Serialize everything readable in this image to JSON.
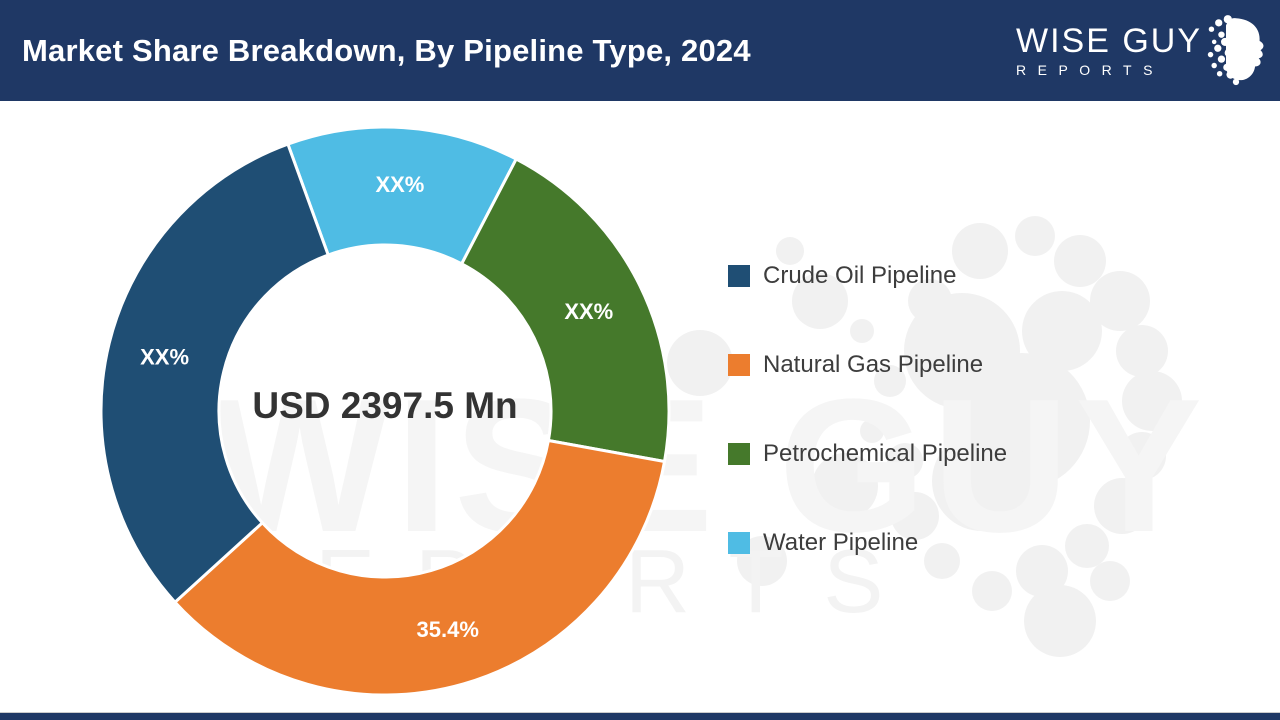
{
  "header": {
    "title": "Market Share Breakdown, By Pipeline Type, 2024",
    "logo": {
      "line1": "WISE GUY",
      "line2": "REPORTS"
    }
  },
  "watermark": {
    "line1": "WISE GUY",
    "line2": "REPORTS"
  },
  "chart_data": {
    "type": "pie",
    "subtype": "donut",
    "title": "Market Share Breakdown, By Pipeline Type, 2024",
    "center_label": "USD 2397.5 Mn",
    "start_angle_deg": -20,
    "draw_clockwise_from_top_order": [
      "Water Pipeline",
      "Petrochemical Pipeline",
      "Natural Gas Pipeline",
      "Crude Oil Pipeline"
    ],
    "legend_position": "right",
    "segments": [
      {
        "name": "Crude Oil Pipeline",
        "label": "XX%",
        "value_pct": 31.2,
        "color": "#1F4E74"
      },
      {
        "name": "Natural Gas Pipeline",
        "label": "35.4%",
        "value_pct": 35.4,
        "color": "#EC7D2E"
      },
      {
        "name": "Petrochemical Pipeline",
        "label": "XX%",
        "value_pct": 20.2,
        "color": "#45792B"
      },
      {
        "name": "Water Pipeline",
        "label": "XX%",
        "value_pct": 13.2,
        "color": "#4FBCE4"
      }
    ]
  },
  "colors": {
    "header_bg": "#1F3865",
    "footer_bg": "#1F3865",
    "center_text": "#333333",
    "legend_text": "#3D3D3D",
    "watermark": "#F5F5F5",
    "slice_gap": "#FFFFFF"
  }
}
